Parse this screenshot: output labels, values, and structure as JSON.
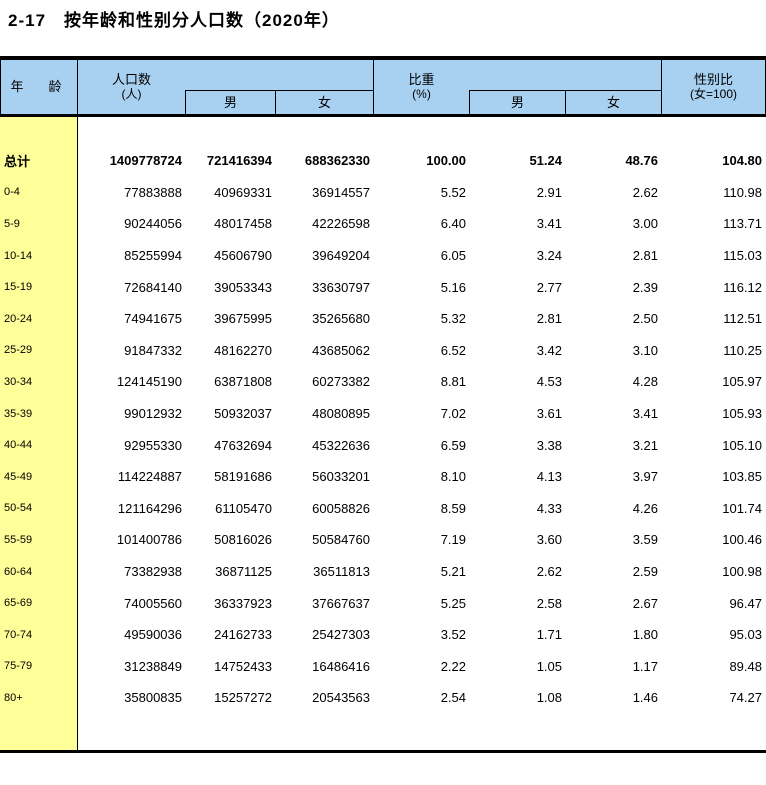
{
  "title": "2-17　按年龄和性别分人口数（2020年）",
  "colors": {
    "header_bg": "#a8d0f0",
    "age_column_bg": "#ffff99",
    "rule_color": "#000000"
  },
  "table": {
    "header": {
      "age": "年　龄",
      "population": "人口数",
      "population_unit": "(人)",
      "male": "男",
      "female": "女",
      "proportion": "比重",
      "proportion_unit": "(%)",
      "sex_ratio": "性别比",
      "sex_ratio_note": "(女=100)"
    },
    "rows": [
      {
        "age": "总计",
        "pop": "1409778724",
        "pop_m": "721416394",
        "pop_f": "688362330",
        "pct": "100.00",
        "pct_m": "51.24",
        "pct_f": "48.76",
        "ratio": "104.80",
        "bold": true
      },
      {
        "age": "0-4",
        "pop": "77883888",
        "pop_m": "40969331",
        "pop_f": "36914557",
        "pct": "5.52",
        "pct_m": "2.91",
        "pct_f": "2.62",
        "ratio": "110.98",
        "bold": false
      },
      {
        "age": "5-9",
        "pop": "90244056",
        "pop_m": "48017458",
        "pop_f": "42226598",
        "pct": "6.40",
        "pct_m": "3.41",
        "pct_f": "3.00",
        "ratio": "113.71",
        "bold": false
      },
      {
        "age": "10-14",
        "pop": "85255994",
        "pop_m": "45606790",
        "pop_f": "39649204",
        "pct": "6.05",
        "pct_m": "3.24",
        "pct_f": "2.81",
        "ratio": "115.03",
        "bold": false
      },
      {
        "age": "15-19",
        "pop": "72684140",
        "pop_m": "39053343",
        "pop_f": "33630797",
        "pct": "5.16",
        "pct_m": "2.77",
        "pct_f": "2.39",
        "ratio": "116.12",
        "bold": false
      },
      {
        "age": "20-24",
        "pop": "74941675",
        "pop_m": "39675995",
        "pop_f": "35265680",
        "pct": "5.32",
        "pct_m": "2.81",
        "pct_f": "2.50",
        "ratio": "112.51",
        "bold": false
      },
      {
        "age": "25-29",
        "pop": "91847332",
        "pop_m": "48162270",
        "pop_f": "43685062",
        "pct": "6.52",
        "pct_m": "3.42",
        "pct_f": "3.10",
        "ratio": "110.25",
        "bold": false
      },
      {
        "age": "30-34",
        "pop": "124145190",
        "pop_m": "63871808",
        "pop_f": "60273382",
        "pct": "8.81",
        "pct_m": "4.53",
        "pct_f": "4.28",
        "ratio": "105.97",
        "bold": false
      },
      {
        "age": "35-39",
        "pop": "99012932",
        "pop_m": "50932037",
        "pop_f": "48080895",
        "pct": "7.02",
        "pct_m": "3.61",
        "pct_f": "3.41",
        "ratio": "105.93",
        "bold": false
      },
      {
        "age": "40-44",
        "pop": "92955330",
        "pop_m": "47632694",
        "pop_f": "45322636",
        "pct": "6.59",
        "pct_m": "3.38",
        "pct_f": "3.21",
        "ratio": "105.10",
        "bold": false
      },
      {
        "age": "45-49",
        "pop": "114224887",
        "pop_m": "58191686",
        "pop_f": "56033201",
        "pct": "8.10",
        "pct_m": "4.13",
        "pct_f": "3.97",
        "ratio": "103.85",
        "bold": false
      },
      {
        "age": "50-54",
        "pop": "121164296",
        "pop_m": "61105470",
        "pop_f": "60058826",
        "pct": "8.59",
        "pct_m": "4.33",
        "pct_f": "4.26",
        "ratio": "101.74",
        "bold": false
      },
      {
        "age": "55-59",
        "pop": "101400786",
        "pop_m": "50816026",
        "pop_f": "50584760",
        "pct": "7.19",
        "pct_m": "3.60",
        "pct_f": "3.59",
        "ratio": "100.46",
        "bold": false
      },
      {
        "age": "60-64",
        "pop": "73382938",
        "pop_m": "36871125",
        "pop_f": "36511813",
        "pct": "5.21",
        "pct_m": "2.62",
        "pct_f": "2.59",
        "ratio": "100.98",
        "bold": false
      },
      {
        "age": "65-69",
        "pop": "74005560",
        "pop_m": "36337923",
        "pop_f": "37667637",
        "pct": "5.25",
        "pct_m": "2.58",
        "pct_f": "2.67",
        "ratio": "96.47",
        "bold": false
      },
      {
        "age": "70-74",
        "pop": "49590036",
        "pop_m": "24162733",
        "pop_f": "25427303",
        "pct": "3.52",
        "pct_m": "1.71",
        "pct_f": "1.80",
        "ratio": "95.03",
        "bold": false
      },
      {
        "age": "75-79",
        "pop": "31238849",
        "pop_m": "14752433",
        "pop_f": "16486416",
        "pct": "2.22",
        "pct_m": "1.05",
        "pct_f": "1.17",
        "ratio": "89.48",
        "bold": false
      },
      {
        "age": "80+",
        "pop": "35800835",
        "pop_m": "15257272",
        "pop_f": "20543563",
        "pct": "2.54",
        "pct_m": "1.08",
        "pct_f": "1.46",
        "ratio": "74.27",
        "bold": false
      }
    ]
  }
}
